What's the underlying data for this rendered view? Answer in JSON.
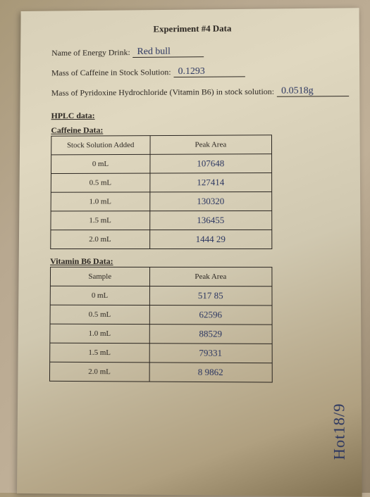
{
  "title": "Experiment #4 Data",
  "fields": {
    "name_label": "Name of Energy Drink:",
    "name_value": "Red bull",
    "mass_caffeine_label": "Mass of Caffeine in Stock Solution:",
    "mass_caffeine_value": "0.1293",
    "mass_b6_label": "Mass of Pyridoxine Hydrochloride (Vitamin B6) in stock solution:",
    "mass_b6_value": "0.0518g"
  },
  "hplc_head": "HPLC data:",
  "caffeine": {
    "heading": "Caffeine Data:",
    "col1": "Stock Solution Added",
    "col2": "Peak Area",
    "rows": [
      {
        "vol": "0 mL",
        "area": "107648"
      },
      {
        "vol": "0.5 mL",
        "area": "127414"
      },
      {
        "vol": "1.0 mL",
        "area": "130320"
      },
      {
        "vol": "1.5 mL",
        "area": "136455"
      },
      {
        "vol": "2.0 mL",
        "area": "1444 29"
      }
    ]
  },
  "b6": {
    "heading": "Vitamin B6 Data:",
    "col1": "Sample",
    "col2": "Peak Area",
    "rows": [
      {
        "vol": "0 mL",
        "area": "517 85"
      },
      {
        "vol": "0.5 mL",
        "area": "62596"
      },
      {
        "vol": "1.0 mL",
        "area": "88529"
      },
      {
        "vol": "1.5 mL",
        "area": "79331"
      },
      {
        "vol": "2.0 mL",
        "area": "8 9862"
      }
    ]
  },
  "margin_note": "Hot18/9",
  "colors": {
    "ink": "#2a3560",
    "print": "#2a2520"
  }
}
